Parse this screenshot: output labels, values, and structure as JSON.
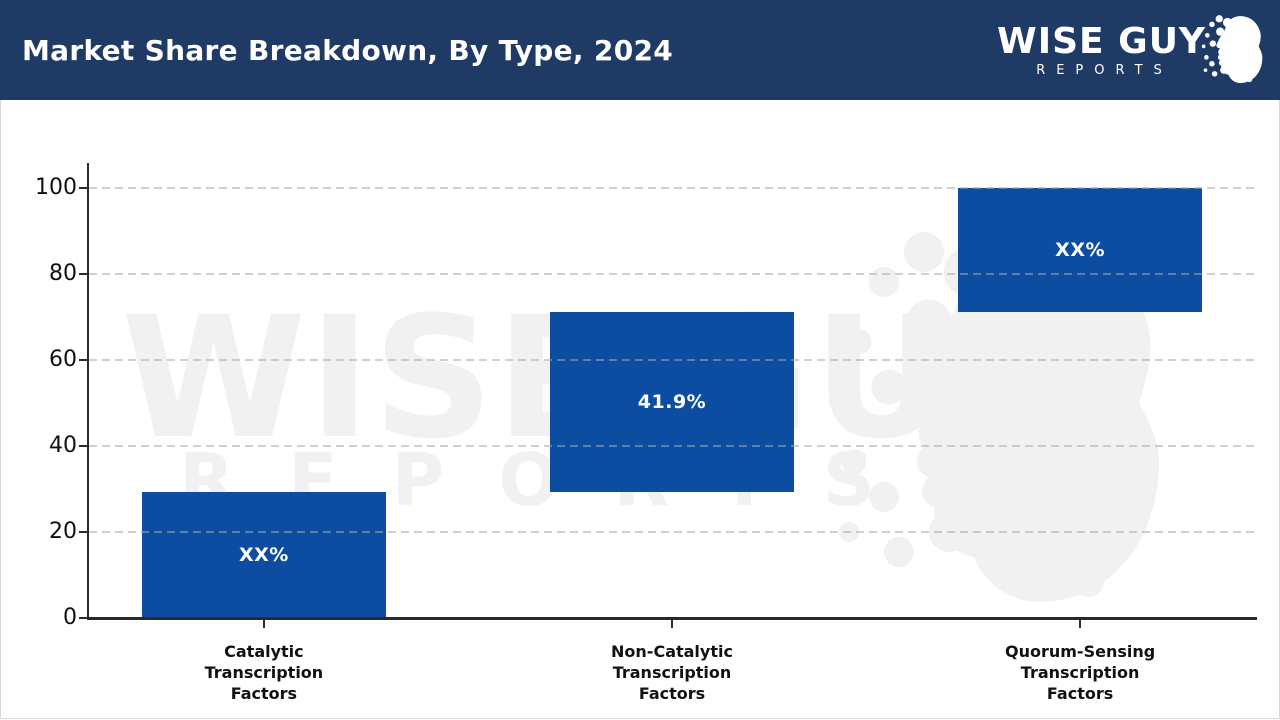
{
  "header": {
    "title": "Market Share Breakdown, By Type, 2024",
    "bg_color": "#203a66",
    "logo": {
      "name": "WISE GUY",
      "sub": "REPORTS"
    }
  },
  "watermark": {
    "line1": "WISE GUY",
    "line2": "REPORTS"
  },
  "chart_data": {
    "type": "bar",
    "variant": "floating stacked percentage segments",
    "title": "Market Share Breakdown, By Type, 2024",
    "categories": [
      "Catalytic\nTranscription\nFactors",
      "Non-Catalytic\nTranscription\nFactors",
      "Quorum-Sensing\nTranscription\nFactors"
    ],
    "segments": [
      {
        "start": 0,
        "end": 29.3,
        "label": "XX%"
      },
      {
        "start": 29.3,
        "end": 71.2,
        "label": "41.9%"
      },
      {
        "start": 71.2,
        "end": 100,
        "label": "XX%"
      }
    ],
    "y_ticks": [
      0,
      20,
      40,
      60,
      80,
      100
    ],
    "ylim": [
      0,
      105
    ],
    "xlabel": "",
    "ylabel": "",
    "grid": "dashed horizontal gridlines",
    "legend": "none",
    "bar_color": "#0c4da2",
    "bar_label_color": "#ffffff",
    "axis_color": "#2a2a2a"
  }
}
